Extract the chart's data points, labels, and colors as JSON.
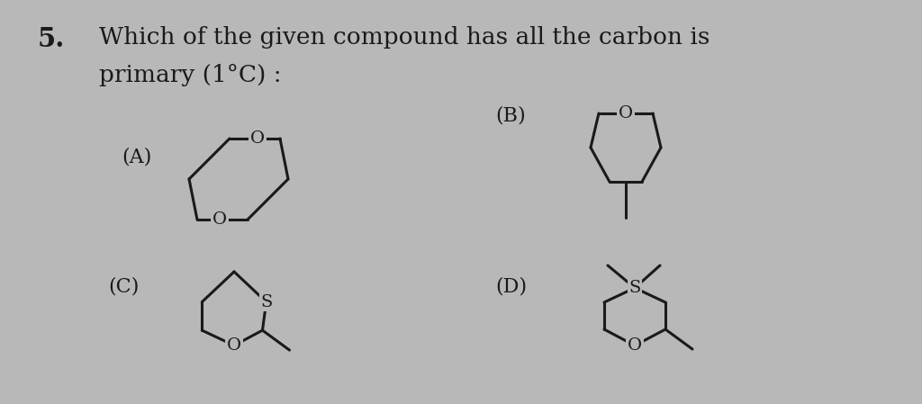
{
  "bg_color": "#b8b8b8",
  "text_color": "#1a1a1a",
  "title_number": "5.",
  "question_text": "Which of the given compound has all the carbon is",
  "question_text2": "primary (1°C) :",
  "label_A": "(A)",
  "label_B": "(B)",
  "label_C": "(C)",
  "label_D": "(D)",
  "font_size_question": 19,
  "font_size_number": 21,
  "font_size_label": 16,
  "font_size_atom": 14,
  "line_color": "#1a1a1a",
  "lw": 2.2
}
